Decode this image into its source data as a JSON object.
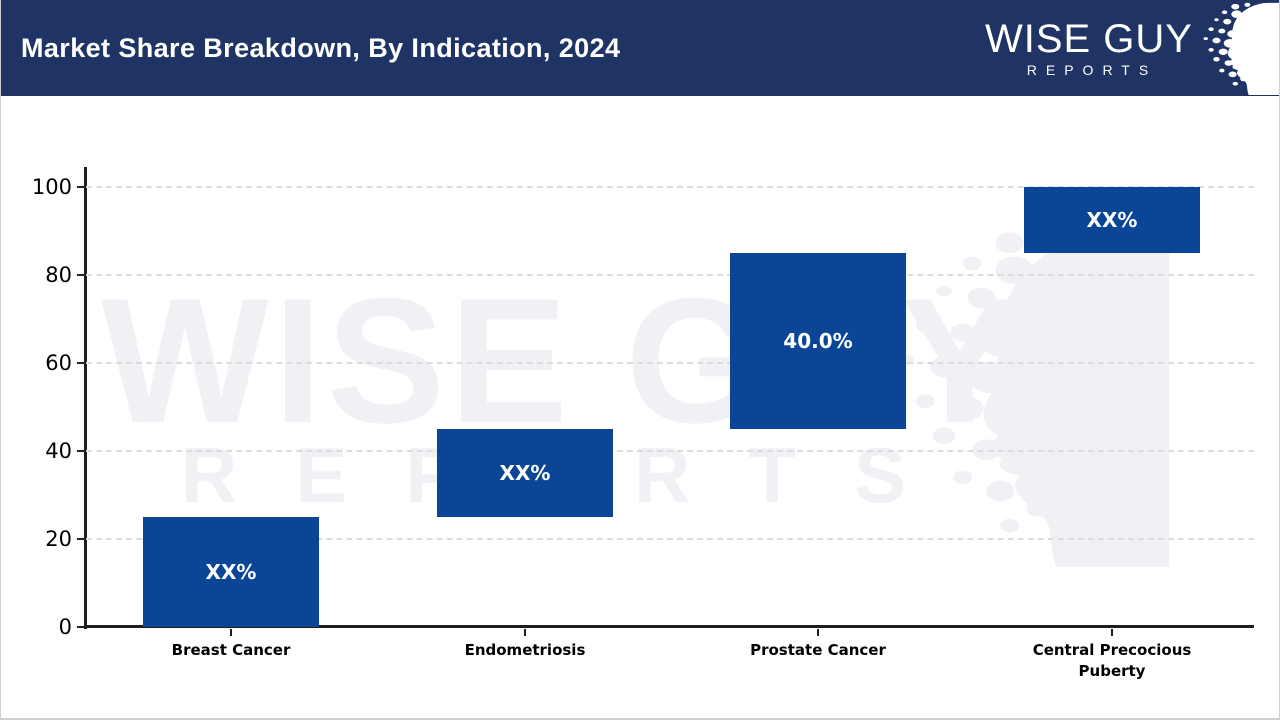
{
  "header": {
    "title": "Market Share Breakdown, By Indication, 2024",
    "logo": {
      "name": "WISE GUY",
      "sub": "REPORTS",
      "icon": "face-dots-icon"
    }
  },
  "watermark": {
    "line1": "WISE GUY",
    "line2": "REPORTS",
    "icon": "face-dots-icon"
  },
  "colors": {
    "header_bg": "#1f3364",
    "title_text": "#ffffff",
    "bar_fill": "#0a4596",
    "bar_label": "#ffffff",
    "grid": "#dcdcdc",
    "axis": "#1f1f1f",
    "watermark": "#f0f1f4",
    "border": "#cfcfcf"
  },
  "chart_data": {
    "type": "bar",
    "subtype": "waterfall",
    "title": "Market Share Breakdown, By Indication, 2024",
    "categories": [
      "Breast Cancer",
      "Endometriosis",
      "Prostate Cancer",
      "Central Precocious Puberty"
    ],
    "bars": [
      {
        "category": "Breast Cancer",
        "start": 0,
        "end": 25,
        "label": "XX%"
      },
      {
        "category": "Endometriosis",
        "start": 25,
        "end": 45,
        "label": "XX%"
      },
      {
        "category": "Prostate Cancer",
        "start": 45,
        "end": 85,
        "label": "40.0%"
      },
      {
        "category": "Central Precocious Puberty",
        "start": 85,
        "end": 100,
        "label": "XX%"
      }
    ],
    "xlabel": "",
    "ylabel": "",
    "ylim": [
      0,
      100
    ],
    "yticks": [
      0,
      20,
      40,
      60,
      80,
      100
    ],
    "grid": "horizontal-dashed",
    "legend": null
  }
}
